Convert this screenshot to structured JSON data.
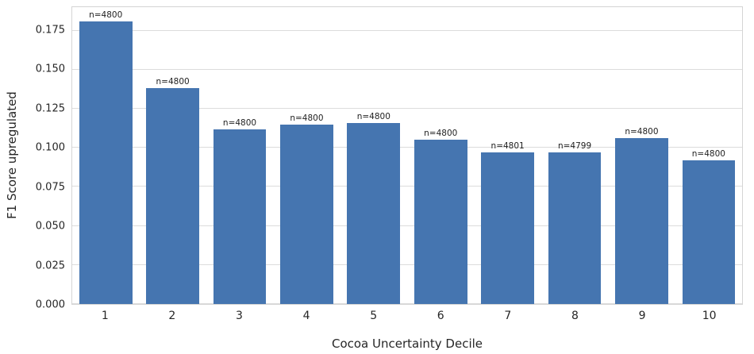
{
  "chart_data": {
    "type": "bar",
    "title": "",
    "xlabel": "Cocoa Uncertainty Decile",
    "ylabel": "F1 Score upregulated",
    "categories": [
      "1",
      "2",
      "3",
      "4",
      "5",
      "6",
      "7",
      "8",
      "9",
      "10"
    ],
    "values": [
      0.181,
      0.138,
      0.112,
      0.115,
      0.116,
      0.105,
      0.097,
      0.097,
      0.106,
      0.092
    ],
    "annotations": [
      "n=4800",
      "n=4800",
      "n=4800",
      "n=4800",
      "n=4800",
      "n=4800",
      "n=4801",
      "n=4799",
      "n=4800",
      "n=4800"
    ],
    "ylim": [
      0,
      0.19
    ],
    "yticks": [
      0,
      0.025,
      0.05,
      0.075,
      0.1,
      0.125,
      0.15,
      0.175
    ],
    "ytick_decimals": 3,
    "bar_color": "#4575b0",
    "grid": true,
    "grid_color": "#dcdcdc",
    "legend_position": "none"
  }
}
